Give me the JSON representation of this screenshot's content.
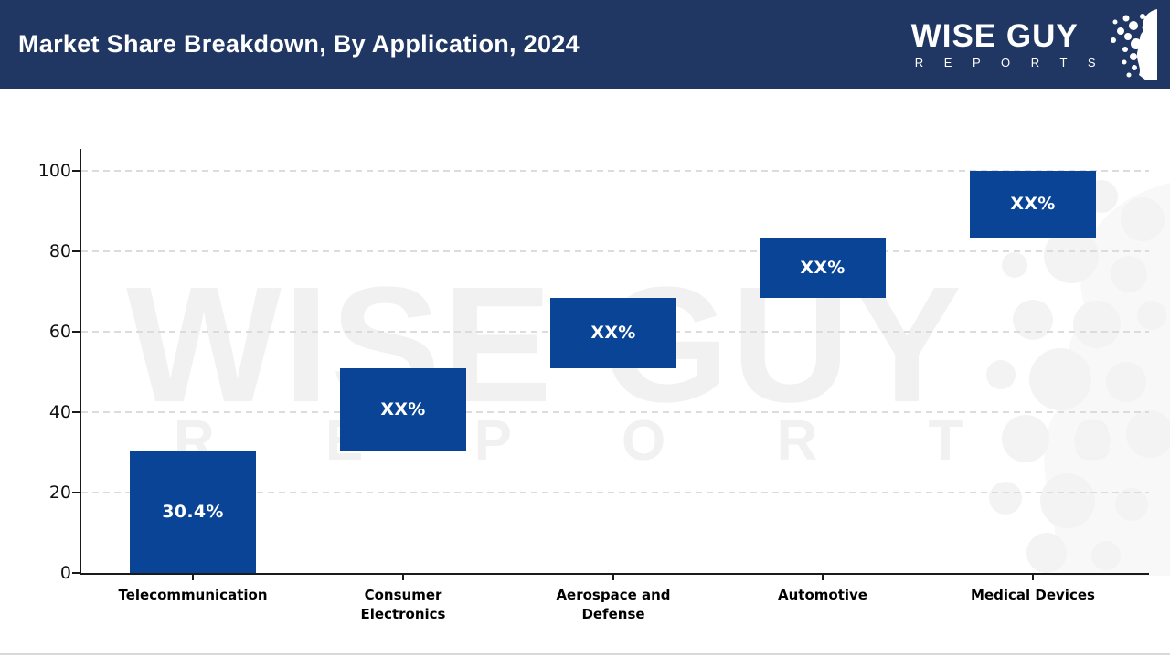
{
  "header": {
    "title": "Market Share Breakdown, By Application, 2024",
    "bg_color": "#213763",
    "logo": {
      "line1": "WISE GUY",
      "line2": "R E P O R T S"
    }
  },
  "watermark": {
    "line1": "WISE GUY",
    "line2": "R E P O R T S"
  },
  "chart_data": {
    "type": "bar",
    "subtype": "waterfall",
    "title": "Market Share Breakdown, By Application, 2024",
    "xlabel": "",
    "ylabel": "",
    "ylim": [
      0,
      100
    ],
    "yticks": [
      0,
      20,
      40,
      60,
      80,
      100
    ],
    "grid": "horizontal-dashed",
    "legend": "none",
    "bar_color": "#0a4496",
    "label_color": "#ffffff",
    "categories": [
      "Telecommunication",
      "Consumer Electronics",
      "Aerospace and Defense",
      "Automotive",
      "Medical Devices"
    ],
    "segments": [
      {
        "start": 0,
        "end": 30.4,
        "label": "30.4%"
      },
      {
        "start": 30.4,
        "end": 51.0,
        "label": "XX%"
      },
      {
        "start": 51.0,
        "end": 68.5,
        "label": "XX%"
      },
      {
        "start": 68.5,
        "end": 83.5,
        "label": "XX%"
      },
      {
        "start": 83.5,
        "end": 100,
        "label": "XX%"
      }
    ]
  }
}
